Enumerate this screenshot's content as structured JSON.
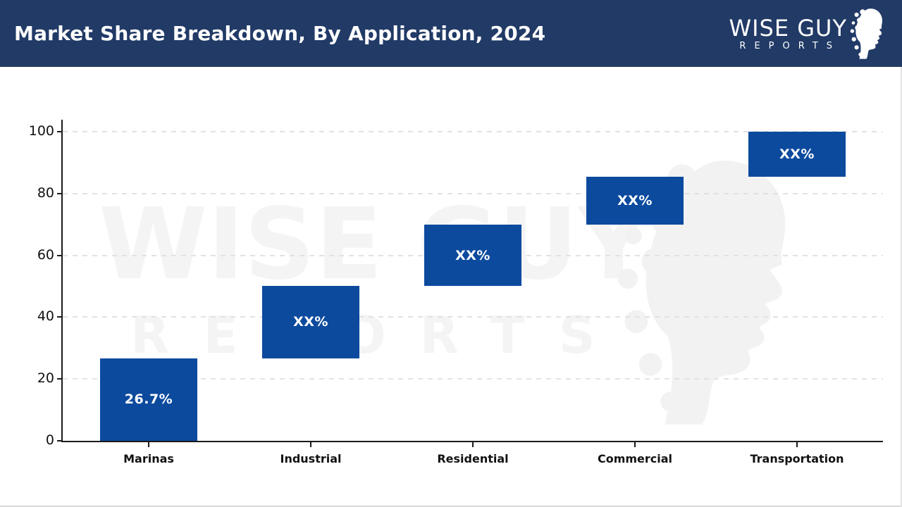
{
  "header": {
    "title": "Market Share Breakdown, By Application, 2024",
    "logo": {
      "line1": "WISE GUY",
      "line2": "REPORTS"
    }
  },
  "watermark": {
    "line1": "WISE GUY",
    "line2": "REPORTS"
  },
  "colors": {
    "header_bg": "#213a66",
    "bar": "#0c4a9e",
    "axis": "#1a1a1a",
    "grid": "#e2e2e2",
    "watermark_text": "#f4f4f4",
    "watermark_face": "#f2f2f2",
    "bar_label": "#ffffff"
  },
  "chart_data": {
    "type": "bar",
    "subtype": "floating-waterfall",
    "title": "Market Share Breakdown, By Application, 2024",
    "categories": [
      "Marinas",
      "Industrial",
      "Residential",
      "Commercial",
      "Transportation"
    ],
    "segments": [
      {
        "category": "Marinas",
        "start": 0,
        "end": 26.7,
        "label": "26.7%"
      },
      {
        "category": "Industrial",
        "start": 26.7,
        "end": 50.1,
        "label": "XX%"
      },
      {
        "category": "Residential",
        "start": 50.1,
        "end": 69.9,
        "label": "XX%"
      },
      {
        "category": "Commercial",
        "start": 69.9,
        "end": 85.4,
        "label": "XX%"
      },
      {
        "category": "Transportation",
        "start": 85.4,
        "end": 100,
        "label": "XX%"
      }
    ],
    "yticks": [
      0,
      20,
      40,
      60,
      80,
      100
    ],
    "ylim": [
      0,
      104
    ],
    "xlabel": "",
    "ylabel": "",
    "grid": true,
    "grid_style": "dashed",
    "legend": null,
    "bar_color": "#0c4a9e",
    "value_label_color": "#ffffff"
  }
}
